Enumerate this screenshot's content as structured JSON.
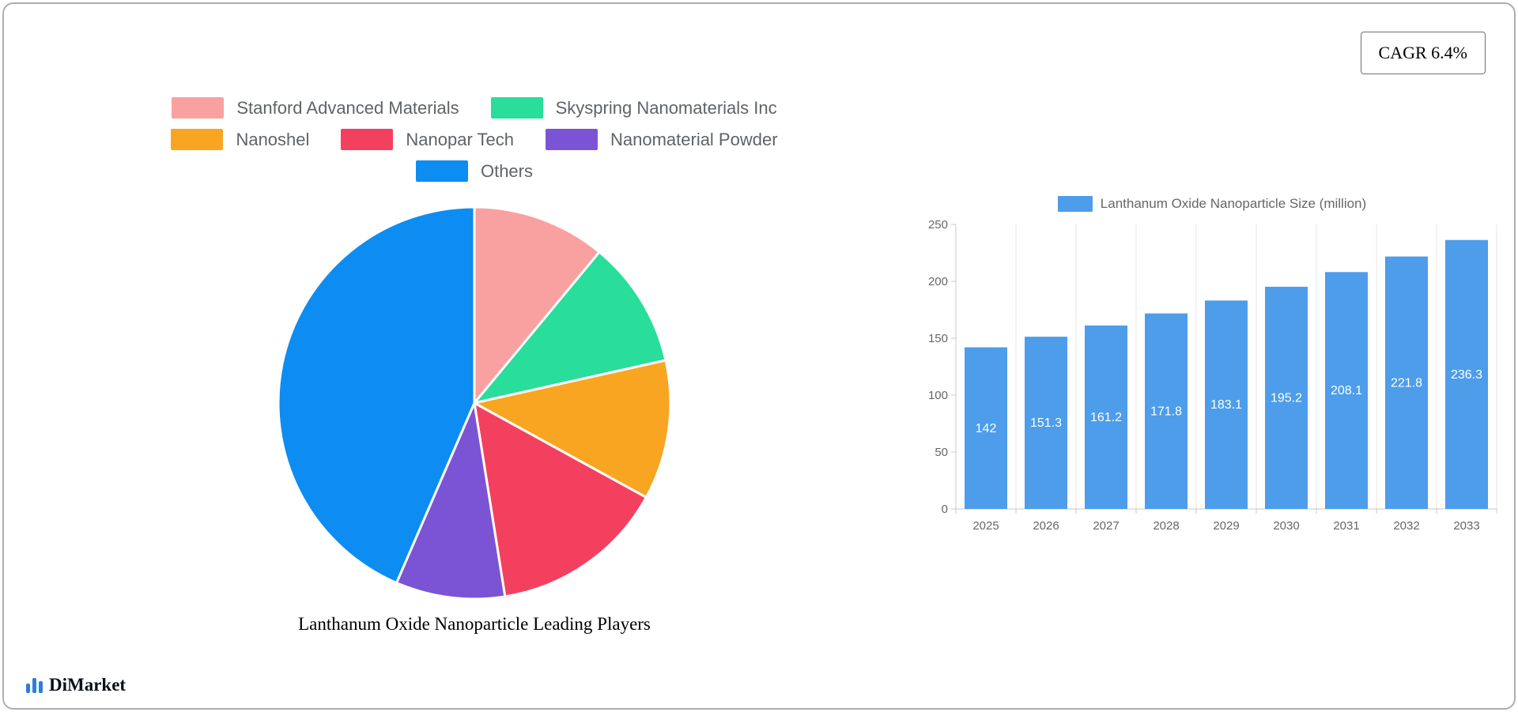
{
  "page": {
    "cagr_badge": "CAGR 6.4%"
  },
  "brand": {
    "name": "DiMarket",
    "icon_color": "#2B7FD9"
  },
  "chart_data": [
    {
      "type": "pie",
      "title": "Lanthanum Oxide Nanoparticle Leading Players",
      "legend_position": "top",
      "labels": [
        "Stanford Advanced Materials",
        "Skyspring Nanomaterials Inc",
        "Nanoshel",
        "Nanopar Tech",
        "Nanomaterial Powder",
        "Others"
      ],
      "values": [
        11,
        10.5,
        11.5,
        14.5,
        9,
        43.5
      ],
      "colors": [
        "#F9A1A0",
        "#29DD9B",
        "#F8A621",
        "#F4405F",
        "#7B54D5",
        "#0D8DF2"
      ]
    },
    {
      "type": "bar",
      "legend": "Lanthanum Oxide Nanoparticle Size (million)",
      "legend_position": "top",
      "categories": [
        "2025",
        "2026",
        "2027",
        "2028",
        "2029",
        "2030",
        "2031",
        "2032",
        "2033"
      ],
      "values": [
        142,
        151.3,
        161.2,
        171.8,
        183.1,
        195.2,
        208.1,
        221.8,
        236.3
      ],
      "value_labels": [
        "142",
        "151.3",
        "161.2",
        "171.8",
        "183.1",
        "195.2",
        "208.1",
        "221.8",
        "236.3"
      ],
      "bar_color": "#4D9DEA",
      "ylim": [
        0,
        250
      ],
      "yticks": [
        0,
        50,
        100,
        150,
        200,
        250
      ],
      "grid": "vertical",
      "axis_color": "#C9C9C9",
      "grid_color": "#E4E4E4",
      "tick_label_color": "#666666"
    }
  ]
}
